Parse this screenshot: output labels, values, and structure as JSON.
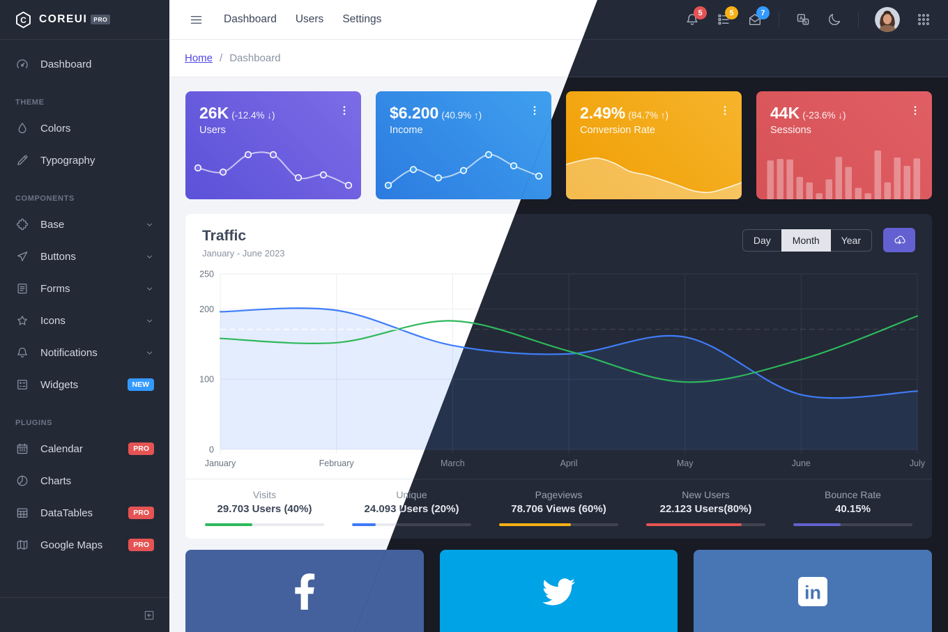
{
  "brand": {
    "name": "COREUI",
    "badge": "PRO"
  },
  "sidebar": {
    "items": [
      {
        "type": "link",
        "label": "Dashboard",
        "icon": "speedometer"
      },
      {
        "type": "title",
        "label": "Theme"
      },
      {
        "type": "link",
        "label": "Colors",
        "icon": "drop"
      },
      {
        "type": "link",
        "label": "Typography",
        "icon": "pencil"
      },
      {
        "type": "title",
        "label": "Components"
      },
      {
        "type": "group",
        "label": "Base",
        "icon": "puzzle"
      },
      {
        "type": "group",
        "label": "Buttons",
        "icon": "cursor"
      },
      {
        "type": "group",
        "label": "Forms",
        "icon": "notes"
      },
      {
        "type": "group",
        "label": "Icons",
        "icon": "star"
      },
      {
        "type": "group",
        "label": "Notifications",
        "icon": "bell"
      },
      {
        "type": "link",
        "label": "Widgets",
        "icon": "widgets",
        "badge": {
          "text": "NEW",
          "color": "#3399ff"
        }
      },
      {
        "type": "title",
        "label": "Plugins"
      },
      {
        "type": "link",
        "label": "Calendar",
        "icon": "calendar",
        "badge": {
          "text": "PRO",
          "color": "#e55353"
        }
      },
      {
        "type": "link",
        "label": "Charts",
        "icon": "chart-pie"
      },
      {
        "type": "link",
        "label": "DataTables",
        "icon": "table",
        "badge": {
          "text": "PRO",
          "color": "#e55353"
        }
      },
      {
        "type": "link",
        "label": "Google Maps",
        "icon": "map",
        "badge": {
          "text": "PRO",
          "color": "#e55353"
        }
      }
    ]
  },
  "header": {
    "nav": [
      "Dashboard",
      "Users",
      "Settings"
    ],
    "badges": {
      "bell": "5",
      "tasks": "5",
      "mail": "7"
    }
  },
  "breadcrumb": {
    "items": [
      "Home",
      "Dashboard"
    ]
  },
  "stat_cards": [
    {
      "value": "26K",
      "delta": "(-12.4% ↓)",
      "label": "Users",
      "chart": "line",
      "data": [
        65,
        59,
        84,
        84,
        51,
        55,
        40
      ],
      "gradient": [
        "#5b51d8",
        "#7c6ce6"
      ]
    },
    {
      "value": "$6.200",
      "delta": "(40.9% ↑)",
      "label": "Income",
      "chart": "line",
      "data": [
        1,
        18,
        9,
        17,
        34,
        22,
        11
      ],
      "gradient": [
        "#2c7be0",
        "#3fa0ee"
      ]
    },
    {
      "value": "2.49%",
      "delta": "(84.7% ↑)",
      "label": "Conversion Rate",
      "chart": "area",
      "data": [
        48,
        54,
        57,
        50,
        38,
        33,
        26,
        18,
        10,
        8,
        14,
        22
      ],
      "gradient": [
        "#ef9e02",
        "#f7b42c"
      ]
    },
    {
      "value": "44K",
      "delta": "(-23.6% ↓)",
      "label": "Sessions",
      "chart": "bar",
      "data": [
        78,
        81,
        80,
        45,
        34,
        12,
        40,
        85,
        65,
        23,
        12,
        98,
        34,
        84,
        67,
        82
      ],
      "gradient": [
        "#d65257",
        "#e05f64"
      ]
    }
  ],
  "traffic": {
    "title": "Traffic",
    "subtitle": "January - June 2023",
    "range_buttons": [
      "Day",
      "Month",
      "Year"
    ],
    "active_range": "Month",
    "stats": [
      {
        "label": "Visits",
        "value": "29.703 Users (40%)",
        "percent": 40,
        "color": "#2eb85c"
      },
      {
        "label": "Unique",
        "value": "24.093 Users (20%)",
        "percent": 20,
        "color": "#3d7af5"
      },
      {
        "label": "Pageviews",
        "value": "78.706 Views (60%)",
        "percent": 60,
        "color": "#f9b115"
      },
      {
        "label": "New Users",
        "value": "22.123 Users(80%)",
        "percent": 80,
        "color": "#e55353"
      },
      {
        "label": "Bounce Rate",
        "value": "40.15%",
        "percent": 40,
        "color": "#6261ce"
      }
    ]
  },
  "chart_data": {
    "type": "line",
    "x": [
      "January",
      "February",
      "March",
      "April",
      "May",
      "June",
      "July"
    ],
    "series": [
      {
        "name": "traffic-blue",
        "color": "#3f7df8",
        "fill": true,
        "values": [
          196,
          198,
          148,
          136,
          160,
          78,
          83
        ]
      },
      {
        "name": "traffic-green",
        "color": "#2eb85c",
        "fill": false,
        "values": [
          158,
          152,
          183,
          140,
          96,
          128,
          190
        ]
      },
      {
        "name": "baseline-dashed",
        "color": "#ffffff",
        "dashed": true,
        "constant": 171
      }
    ],
    "ylim": [
      0,
      250
    ],
    "yticks": [
      0,
      100,
      200,
      250
    ],
    "grid": true,
    "legend": "none"
  },
  "social": [
    {
      "name": "facebook",
      "color": "#44619d"
    },
    {
      "name": "twitter",
      "color": "#00a3e6"
    },
    {
      "name": "linkedin",
      "color": "#4875b4"
    }
  ]
}
